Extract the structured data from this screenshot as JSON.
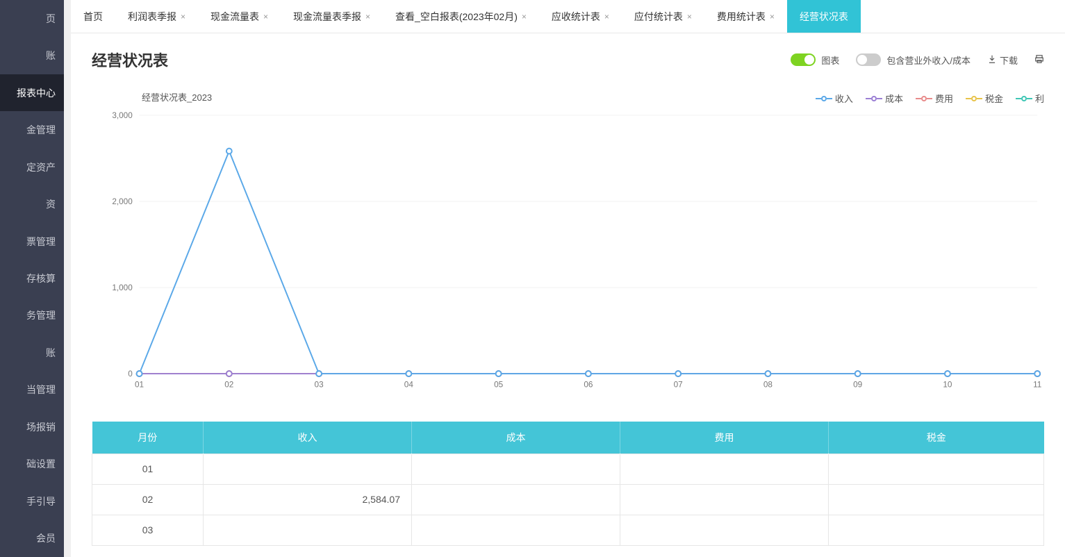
{
  "sidebar": {
    "items": [
      {
        "label": "页"
      },
      {
        "label": "账"
      },
      {
        "label": "报表中心",
        "active": true
      },
      {
        "label": "金管理"
      },
      {
        "label": "定资产"
      },
      {
        "label": "资"
      },
      {
        "label": "票管理"
      },
      {
        "label": "存核算"
      },
      {
        "label": "务管理"
      },
      {
        "label": "账"
      },
      {
        "label": "当管理"
      },
      {
        "label": "场报销"
      },
      {
        "label": "础设置"
      },
      {
        "label": "手引导"
      },
      {
        "label": "会员"
      }
    ]
  },
  "tabs": [
    {
      "label": "首页",
      "closable": false
    },
    {
      "label": "利润表季报",
      "closable": true
    },
    {
      "label": "现金流量表",
      "closable": true
    },
    {
      "label": "现金流量表季报",
      "closable": true
    },
    {
      "label": "查看_空白报表(2023年02月)",
      "closable": true
    },
    {
      "label": "应收统计表",
      "closable": true
    },
    {
      "label": "应付统计表",
      "closable": true
    },
    {
      "label": "费用统计表",
      "closable": true
    },
    {
      "label": "经营状况表",
      "closable": false,
      "active": true
    }
  ],
  "page": {
    "title": "经营状况表",
    "toggle_chart": {
      "label": "图表",
      "on": true
    },
    "toggle_extra": {
      "label": "包含营业外收入/成本",
      "on": false
    },
    "download_label": "下载"
  },
  "chart": {
    "title": "经营状况表_2023",
    "type": "line",
    "x_labels": [
      "01",
      "02",
      "03",
      "04",
      "05",
      "06",
      "07",
      "08",
      "09",
      "10",
      "11"
    ],
    "y_ticks": [
      0,
      1000,
      2000,
      3000
    ],
    "y_tick_labels": [
      "0",
      "1,000",
      "2,000",
      "3,000"
    ],
    "ylim": [
      0,
      3000
    ],
    "grid_color": "#f0f0f0",
    "axis_color": "#cccccc",
    "label_color": "#777777",
    "label_fontsize": 12,
    "background_color": "#ffffff",
    "marker_radius": 4,
    "line_width": 2,
    "series": [
      {
        "name": "收入",
        "color": "#5aa8e8",
        "values": [
          0,
          2584.07,
          0,
          0,
          0,
          0,
          0,
          0,
          0,
          0,
          0
        ]
      },
      {
        "name": "成本",
        "color": "#9b7fd4",
        "values": [
          0,
          0,
          0,
          0,
          0,
          0,
          0,
          0,
          0,
          0,
          0
        ]
      },
      {
        "name": "费用",
        "color": "#e88b8b",
        "values": [
          0,
          0,
          0,
          0,
          0,
          0,
          0,
          0,
          0,
          0,
          0
        ]
      },
      {
        "name": "税金",
        "color": "#e8c34a",
        "values": [
          0,
          0,
          0,
          0,
          0,
          0,
          0,
          0,
          0,
          0,
          0
        ]
      },
      {
        "name": "利",
        "color": "#3fc6b5",
        "values": [
          0,
          0,
          0,
          0,
          0,
          0,
          0,
          0,
          0,
          0,
          0
        ]
      }
    ]
  },
  "table": {
    "columns": [
      "月份",
      "收入",
      "成本",
      "费用",
      "税金"
    ],
    "col_widths": [
      "160px",
      "300px",
      "300px",
      "300px",
      "auto"
    ],
    "rows": [
      {
        "month": "01",
        "income": "",
        "cost": "",
        "expense": "",
        "tax": ""
      },
      {
        "month": "02",
        "income": "2,584.07",
        "cost": "",
        "expense": "",
        "tax": ""
      },
      {
        "month": "03",
        "income": "",
        "cost": "",
        "expense": "",
        "tax": ""
      }
    ]
  }
}
